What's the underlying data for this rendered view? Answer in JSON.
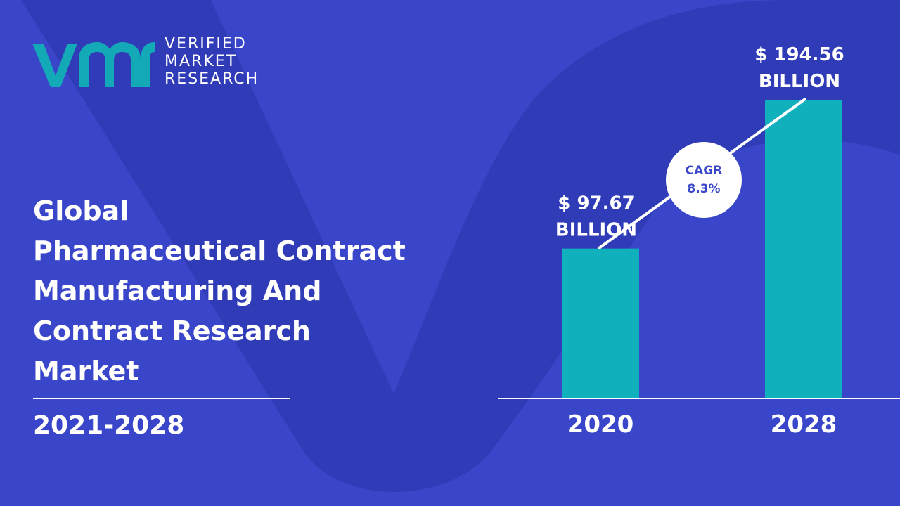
{
  "brand": {
    "lines": [
      "VERIFIED",
      "MARKET",
      "RESEARCH"
    ]
  },
  "title_lines": [
    "Global",
    "Pharmaceutical Contract",
    "Manufacturing And",
    "Contract Research",
    "Market"
  ],
  "period": "2021-2028",
  "colors": {
    "background": "#3a46c9",
    "background_shape": "#2f3ab4",
    "bar": "#10b0bc",
    "text": "#ffffff",
    "cagr_text": "#3a46c9",
    "logo": "#13a9b7"
  },
  "chart_data": {
    "type": "bar",
    "categories": [
      "2020",
      "2028"
    ],
    "values": [
      97.67,
      194.56
    ],
    "value_labels": [
      [
        "$ 97.67",
        "BILLION"
      ],
      [
        "$ 194.56",
        "BILLION"
      ]
    ],
    "unit": "USD Billion",
    "annotation": {
      "label": "CAGR",
      "value": "8.3%"
    },
    "ylim": [
      0,
      194.56
    ],
    "grid": false,
    "legend": "none"
  }
}
